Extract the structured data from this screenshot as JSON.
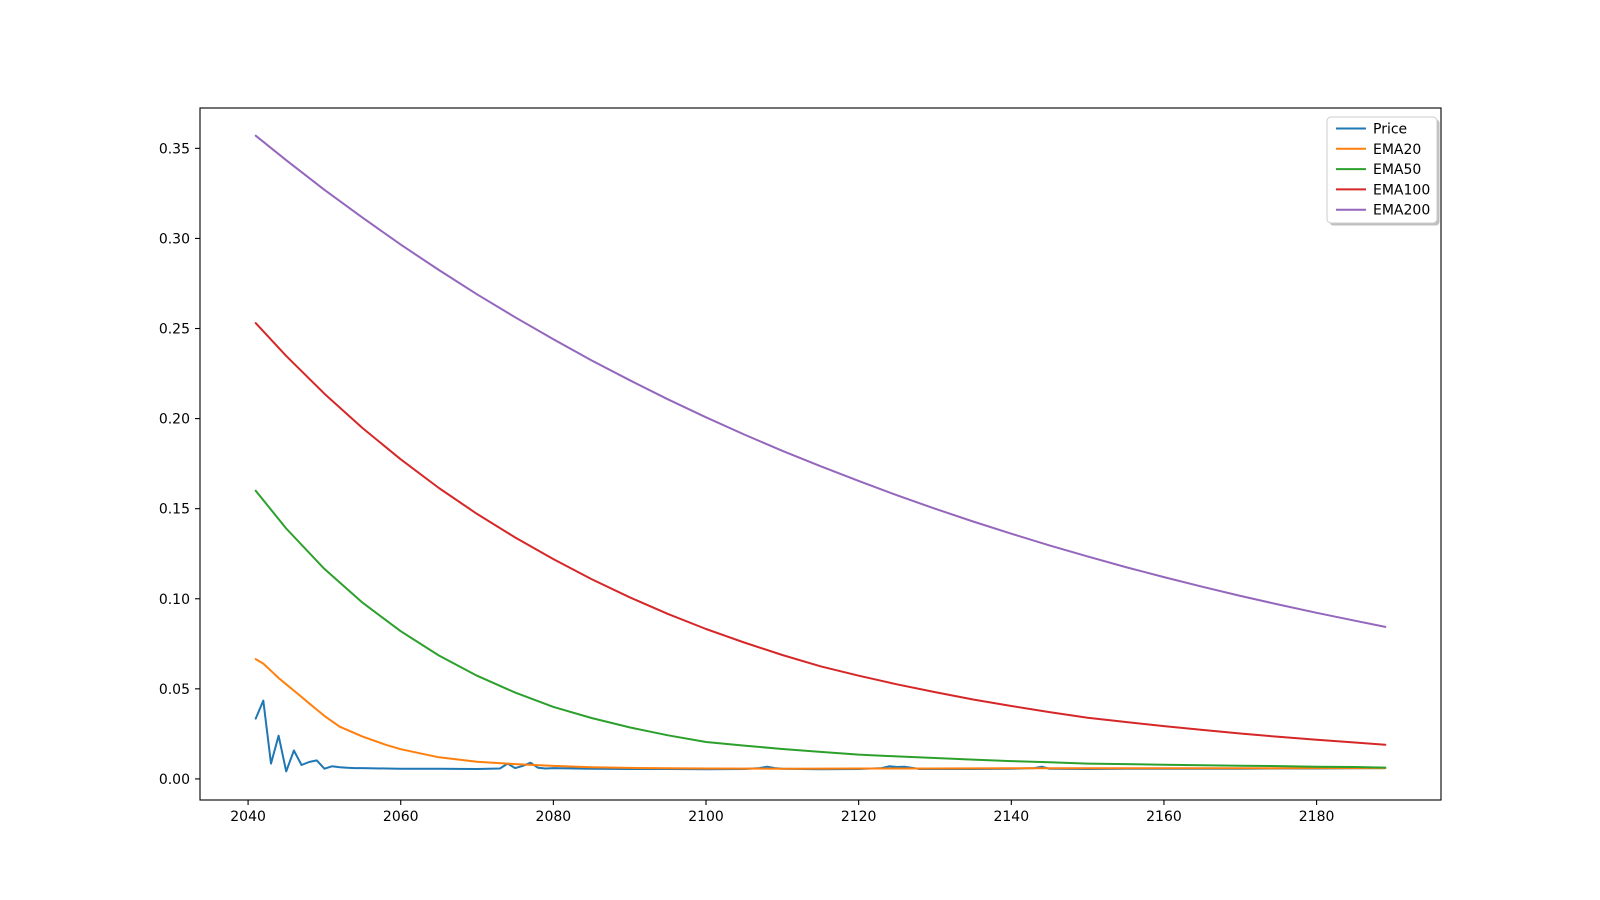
{
  "chart_data": {
    "type": "line",
    "title": "",
    "xlabel": "",
    "ylabel": "",
    "grid": false,
    "background": "#ffffff",
    "spine_color": "#000000",
    "xlim": [
      2033.7,
      2196.3
    ],
    "ylim": [
      -0.0117,
      0.3724
    ],
    "xticks": [
      2040,
      2060,
      2080,
      2100,
      2120,
      2140,
      2160,
      2180
    ],
    "xtick_labels": [
      "2040",
      "2060",
      "2080",
      "2100",
      "2120",
      "2140",
      "2160",
      "2180"
    ],
    "yticks": [
      0.0,
      0.05,
      0.1,
      0.15,
      0.2,
      0.25,
      0.3,
      0.35
    ],
    "ytick_labels": [
      "0.00",
      "0.05",
      "0.10",
      "0.15",
      "0.20",
      "0.25",
      "0.30",
      "0.35"
    ],
    "legend": {
      "position": "upper right",
      "entries": [
        "Price",
        "EMA20",
        "EMA50",
        "EMA100",
        "EMA200"
      ]
    },
    "series": [
      {
        "name": "Price",
        "color": "#1f77b4",
        "x": [
          2041,
          2042,
          2043,
          2044,
          2045,
          2046,
          2047,
          2048,
          2049,
          2050,
          2051,
          2052,
          2053,
          2054,
          2055,
          2058,
          2060,
          2065,
          2070,
          2073,
          2074,
          2075,
          2076,
          2077,
          2078,
          2079,
          2080,
          2085,
          2090,
          2095,
          2100,
          2105,
          2107,
          2108,
          2109,
          2110,
          2115,
          2120,
          2123,
          2124,
          2125,
          2126,
          2128,
          2135,
          2140,
          2143,
          2144,
          2145,
          2150,
          2155,
          2160,
          2165,
          2170,
          2175,
          2180,
          2185,
          2189
        ],
        "y": [
          0.0335,
          0.0435,
          0.0085,
          0.024,
          0.0042,
          0.0158,
          0.0077,
          0.0094,
          0.0103,
          0.0057,
          0.007,
          0.0065,
          0.0062,
          0.006,
          0.006,
          0.0058,
          0.0057,
          0.0056,
          0.0055,
          0.0058,
          0.0085,
          0.006,
          0.0072,
          0.009,
          0.0062,
          0.0058,
          0.006,
          0.0056,
          0.0055,
          0.0055,
          0.0054,
          0.0055,
          0.006,
          0.0068,
          0.006,
          0.0056,
          0.0054,
          0.0055,
          0.006,
          0.007,
          0.0066,
          0.0068,
          0.0055,
          0.0055,
          0.0056,
          0.006,
          0.0068,
          0.0056,
          0.0055,
          0.0056,
          0.0057,
          0.0057,
          0.0057,
          0.0058,
          0.0058,
          0.0059,
          0.006
        ]
      },
      {
        "name": "EMA20",
        "color": "#ff7f0e",
        "x": [
          2041,
          2042,
          2043,
          2044,
          2045,
          2046,
          2047,
          2048,
          2049,
          2050,
          2052,
          2055,
          2058,
          2060,
          2065,
          2070,
          2075,
          2080,
          2085,
          2090,
          2095,
          2100,
          2110,
          2120,
          2130,
          2140,
          2150,
          2160,
          2170,
          2180,
          2189
        ],
        "y": [
          0.0665,
          0.064,
          0.06,
          0.056,
          0.0525,
          0.049,
          0.0455,
          0.042,
          0.0385,
          0.035,
          0.029,
          0.0235,
          0.019,
          0.0165,
          0.012,
          0.0095,
          0.0082,
          0.0072,
          0.0065,
          0.0061,
          0.0059,
          0.0058,
          0.0057,
          0.0058,
          0.0058,
          0.0059,
          0.0059,
          0.0059,
          0.0059,
          0.006,
          0.006
        ]
      },
      {
        "name": "EMA50",
        "color": "#2ca02c",
        "x": [
          2041,
          2045,
          2050,
          2055,
          2060,
          2065,
          2070,
          2075,
          2080,
          2085,
          2090,
          2095,
          2100,
          2105,
          2110,
          2115,
          2120,
          2125,
          2130,
          2135,
          2140,
          2145,
          2150,
          2155,
          2160,
          2165,
          2170,
          2175,
          2180,
          2185,
          2189
        ],
        "y": [
          0.16,
          0.139,
          0.1166,
          0.0978,
          0.082,
          0.0685,
          0.0573,
          0.0479,
          0.04,
          0.0338,
          0.0286,
          0.0242,
          0.0205,
          0.0185,
          0.0166,
          0.015,
          0.0135,
          0.0125,
          0.0116,
          0.0107,
          0.0099,
          0.0092,
          0.0085,
          0.0082,
          0.0079,
          0.0076,
          0.0073,
          0.0071,
          0.0068,
          0.0066,
          0.0063
        ]
      },
      {
        "name": "EMA100",
        "color": "#d62728",
        "x": [
          2041,
          2045,
          2050,
          2055,
          2060,
          2065,
          2070,
          2075,
          2080,
          2085,
          2090,
          2095,
          2100,
          2105,
          2110,
          2115,
          2120,
          2125,
          2130,
          2135,
          2140,
          2145,
          2150,
          2155,
          2160,
          2165,
          2170,
          2175,
          2180,
          2185,
          2189
        ],
        "y": [
          0.253,
          0.2348,
          0.2138,
          0.1947,
          0.1774,
          0.1615,
          0.1471,
          0.134,
          0.122,
          0.1109,
          0.1008,
          0.0916,
          0.0832,
          0.0757,
          0.0688,
          0.0625,
          0.0573,
          0.0525,
          0.0482,
          0.0441,
          0.0405,
          0.0371,
          0.034,
          0.0316,
          0.0293,
          0.0272,
          0.0252,
          0.0234,
          0.0217,
          0.0202,
          0.019
        ]
      },
      {
        "name": "EMA200",
        "color": "#9467bd",
        "x": [
          2041,
          2045,
          2050,
          2055,
          2060,
          2065,
          2070,
          2075,
          2080,
          2085,
          2090,
          2095,
          2100,
          2105,
          2110,
          2115,
          2120,
          2125,
          2130,
          2135,
          2140,
          2145,
          2150,
          2155,
          2160,
          2165,
          2170,
          2175,
          2180,
          2185,
          2189
        ],
        "y": [
          0.357,
          0.3434,
          0.327,
          0.3115,
          0.2966,
          0.2825,
          0.269,
          0.2562,
          0.244,
          0.2323,
          0.2213,
          0.2107,
          0.2007,
          0.1912,
          0.1821,
          0.1736,
          0.1654,
          0.1575,
          0.15,
          0.1429,
          0.1361,
          0.1296,
          0.1235,
          0.1176,
          0.112,
          0.1067,
          0.1016,
          0.0968,
          0.0922,
          0.0878,
          0.0844
        ]
      }
    ]
  }
}
